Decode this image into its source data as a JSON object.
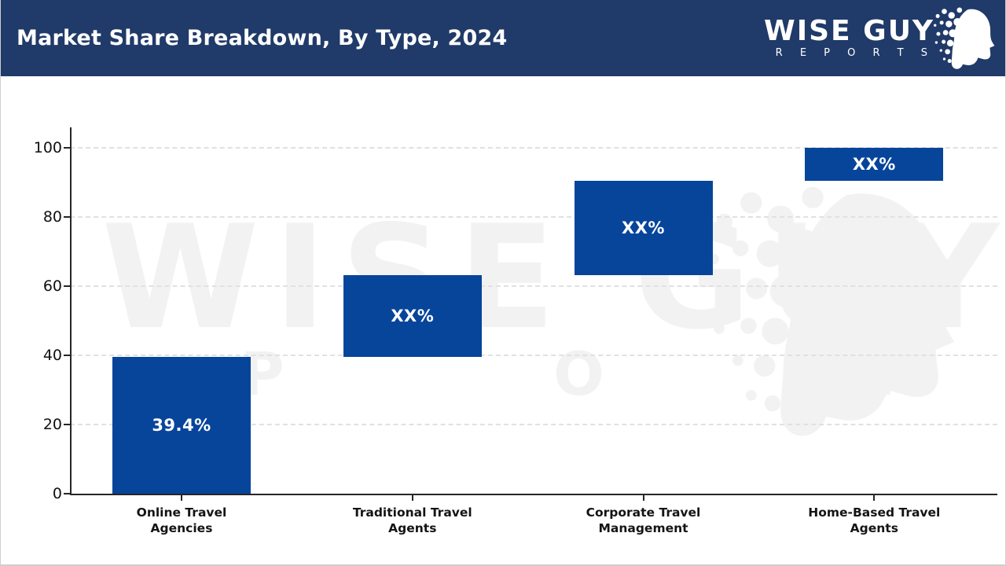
{
  "header": {
    "title": "Market Share Breakdown, By Type, 2024",
    "logo": {
      "line1": "WISE GUY",
      "line2": "R E P O R T S"
    }
  },
  "watermark": {
    "line1": "WISE GUY",
    "line2": "P O R T S"
  },
  "colors": {
    "header_bg": "#203a69",
    "bar": "#07459b",
    "bar_label_text": "#ffffff",
    "gridline": "#e1e1e1",
    "axis": "#262626",
    "tick_text": "#111111",
    "watermark": "#f2f2f2",
    "page_border": "#cfcfcf"
  },
  "chart_data": {
    "type": "bar",
    "subtype": "waterfall",
    "title": "Market Share Breakdown, By Type, 2024",
    "categories": [
      "Online Travel Agencies",
      "Traditional Travel Agents",
      "Corporate Travel Management",
      "Home-Based Travel Agents"
    ],
    "category_lines": [
      [
        "Online Travel",
        "Agencies"
      ],
      [
        "Traditional Travel",
        "Agents"
      ],
      [
        "Corporate Travel",
        "Management"
      ],
      [
        "Home-Based Travel",
        "Agents"
      ]
    ],
    "segments": [
      {
        "category": "Online Travel Agencies",
        "start": 0,
        "end": 39.4,
        "label": "39.4%"
      },
      {
        "category": "Traditional Travel Agents",
        "start": 39.4,
        "end": 63.2,
        "label": "XX%"
      },
      {
        "category": "Corporate Travel Management",
        "start": 63.2,
        "end": 90.4,
        "label": "XX%"
      },
      {
        "category": "Home-Based Travel Agents",
        "start": 90.4,
        "end": 100,
        "label": "XX%"
      }
    ],
    "ylabel": "",
    "xlabel": "",
    "yticks": [
      0,
      20,
      40,
      60,
      80,
      100
    ],
    "ylim": [
      0,
      105
    ],
    "grid": "horizontal-dashed",
    "legend": "none",
    "bar_color": "#07459b"
  }
}
